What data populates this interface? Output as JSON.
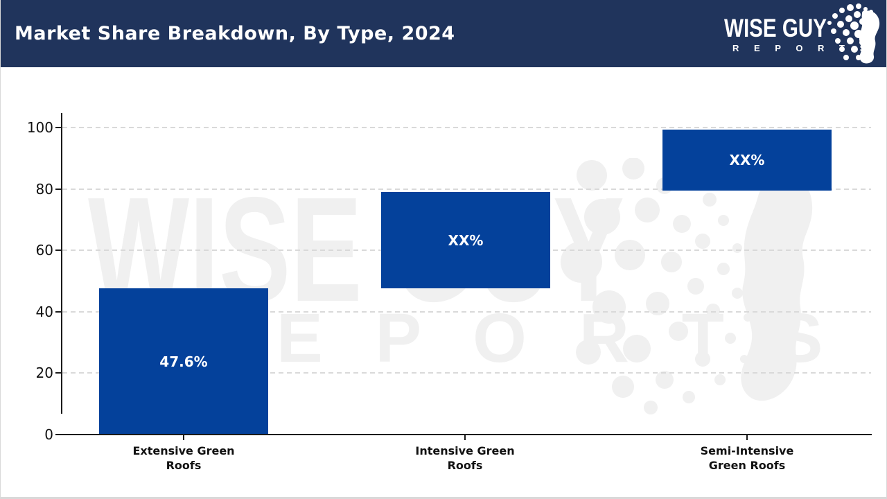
{
  "page": {
    "bg": "#ffffff",
    "edge_color": "#d9d9d9"
  },
  "header": {
    "bg": "#20345c",
    "title": "Market Share Breakdown, By Type, 2024",
    "logo": {
      "name": "WISE GUY",
      "sub": "R E P O R T S",
      "face_icon_color": "#ffffff"
    }
  },
  "watermark": {
    "name": "WISE GUY",
    "sub": "R E P O R T S",
    "color": "#f0f0f0"
  },
  "chart_data": {
    "type": "bar",
    "subtype": "waterfall",
    "title": "Market Share Breakdown, By Type, 2024",
    "categories": [
      {
        "lines": [
          "Extensive Green",
          "Roofs"
        ]
      },
      {
        "lines": [
          "Intensive Green",
          "Roofs"
        ]
      },
      {
        "lines": [
          "Semi-Intensive",
          "Green Roofs"
        ]
      }
    ],
    "bars": [
      {
        "label": "47.6%",
        "start": 0,
        "end": 47.6
      },
      {
        "label": "XX%",
        "start": 47.6,
        "end": 79.1
      },
      {
        "label": "XX%",
        "start": 79.5,
        "end": 99.4
      }
    ],
    "bar_color": "#04419b",
    "bar_label_color": "#ffffff",
    "yticks": [
      0,
      20,
      40,
      60,
      80,
      100
    ],
    "ylim": [
      0,
      100
    ],
    "grid": {
      "style": "dashed",
      "color": "#d9d9d9",
      "orientation": "horizontal"
    },
    "axis_color": "#1a1a1a",
    "tick_label_color": "#111111",
    "legend": "none",
    "xlabel": "",
    "ylabel": ""
  }
}
